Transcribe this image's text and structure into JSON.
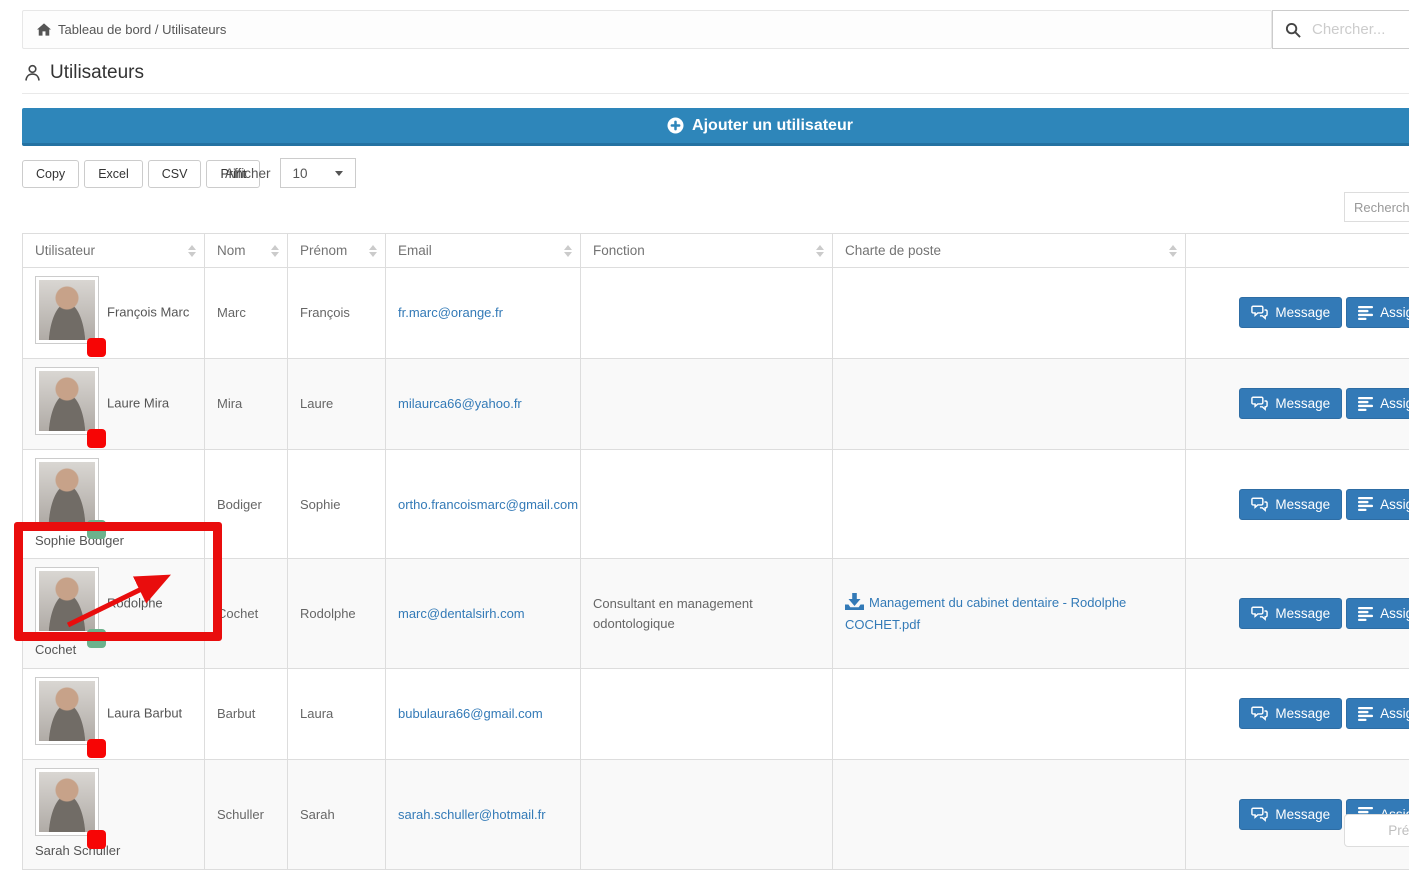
{
  "colors": {
    "accent_blue": "#2e86ba",
    "button_blue": "#337ab7",
    "link_blue": "#337ab7",
    "badge_red": "#f70505",
    "badge_green": "#6cb28c",
    "annotation_red": "#e90d0d",
    "row_stripe": "#f9f9f9"
  },
  "breadcrumb": {
    "icon": "home-icon",
    "path": "Tableau de bord / Utilisateurs"
  },
  "topbar_search": {
    "icon": "search-icon",
    "placeholder": "Chercher..."
  },
  "page": {
    "title": "Utilisateurs",
    "title_icon": "user-icon"
  },
  "add_user_button": {
    "icon": "plus-circle-icon",
    "label": "Ajouter un utilisateur"
  },
  "export_buttons": [
    "Copy",
    "Excel",
    "CSV",
    "Print"
  ],
  "length_control": {
    "label": "Afficher",
    "value": "10",
    "icon": "caret-down-icon"
  },
  "table_search": {
    "value": "Rechercher"
  },
  "table": {
    "columns": [
      {
        "label": "Utilisateur",
        "sortable": true
      },
      {
        "label": "Nom",
        "sortable": true
      },
      {
        "label": "Prénom",
        "sortable": true
      },
      {
        "label": "Email",
        "sortable": true
      },
      {
        "label": "Fonction",
        "sortable": true
      },
      {
        "label": "Charte de poste",
        "sortable": true
      },
      {
        "label": "",
        "sortable": false
      }
    ],
    "rows": [
      {
        "display_name": "François Marc",
        "name_wrap": false,
        "nom": "Marc",
        "prenom": "François",
        "email": "fr.marc@orange.fr",
        "fonction": "",
        "charte_file": "",
        "status": "red",
        "annotated": false
      },
      {
        "display_name": "Laure Mira",
        "name_wrap": false,
        "nom": "Mira",
        "prenom": "Laure",
        "email": "milaurca66@yahoo.fr",
        "fonction": "",
        "charte_file": "",
        "status": "red",
        "annotated": false
      },
      {
        "display_name": "Sophie Bodiger",
        "name_wrap": false,
        "nom": "Bodiger",
        "prenom": "Sophie",
        "email": "ortho.francoismarc@gmail.com",
        "fonction": "",
        "charte_file": "",
        "status": "green",
        "annotated": false
      },
      {
        "display_name": "Rodolphe Cochet",
        "name_wrap": true,
        "nom": "Cochet",
        "prenom": "Rodolphe",
        "email": "marc@dentalsirh.com",
        "fonction": "Consultant en management odontologique",
        "charte_file": "Management du cabinet dentaire - Rodolphe COCHET.pdf",
        "status": "green",
        "annotated": true
      },
      {
        "display_name": "Laura Barbut",
        "name_wrap": false,
        "nom": "Barbut",
        "prenom": "Laura",
        "email": "bubulaura66@gmail.com",
        "fonction": "",
        "charte_file": "",
        "status": "red",
        "annotated": false
      },
      {
        "display_name": "Sarah Schuller",
        "name_wrap": false,
        "nom": "Schuller",
        "prenom": "Sarah",
        "email": "sarah.schuller@hotmail.fr",
        "fonction": "",
        "charte_file": "",
        "status": "red",
        "annotated": false
      }
    ],
    "actions": {
      "message_label": "Message",
      "assign_label": "Assigner",
      "message_icon": "comments-icon",
      "assign_icon": "align-left-icon",
      "charte_icon": "download-icon"
    }
  },
  "pagination": {
    "previous_label": "Précédent"
  },
  "annotation": {
    "shape": "box-and-arrow",
    "color": "#e90d0d"
  }
}
